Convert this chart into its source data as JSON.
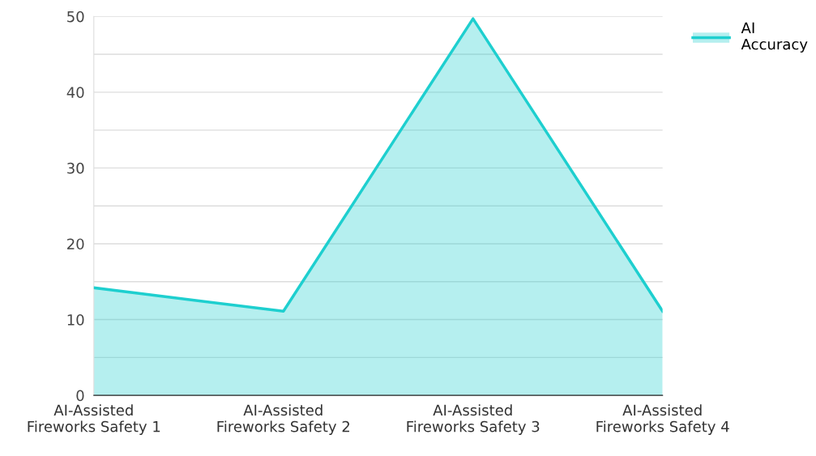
{
  "chart_data": {
    "type": "area",
    "categories": [
      "AI-Assisted\nFireworks Safety 1",
      "AI-Assisted\nFireworks Safety 2",
      "AI-Assisted\nFireworks Safety 3",
      "AI-Assisted\nFireworks Safety 4"
    ],
    "series": [
      {
        "name": "AI\nAccuracy",
        "color": "#1ecfcf",
        "values": [
          14.2,
          11.1,
          49.7,
          11.1
        ]
      }
    ],
    "ylim": [
      0,
      50
    ],
    "yticks": [
      0,
      {
        "value": 5,
        "label": null
      },
      10,
      {
        "value": 15,
        "label": null
      },
      20,
      {
        "value": 25,
        "label": null
      },
      30,
      {
        "value": 35,
        "label": null
      },
      40,
      {
        "value": 45,
        "label": null
      },
      50
    ],
    "grid": "y",
    "legend": "top right",
    "marker": "none",
    "line_style": "solid"
  }
}
